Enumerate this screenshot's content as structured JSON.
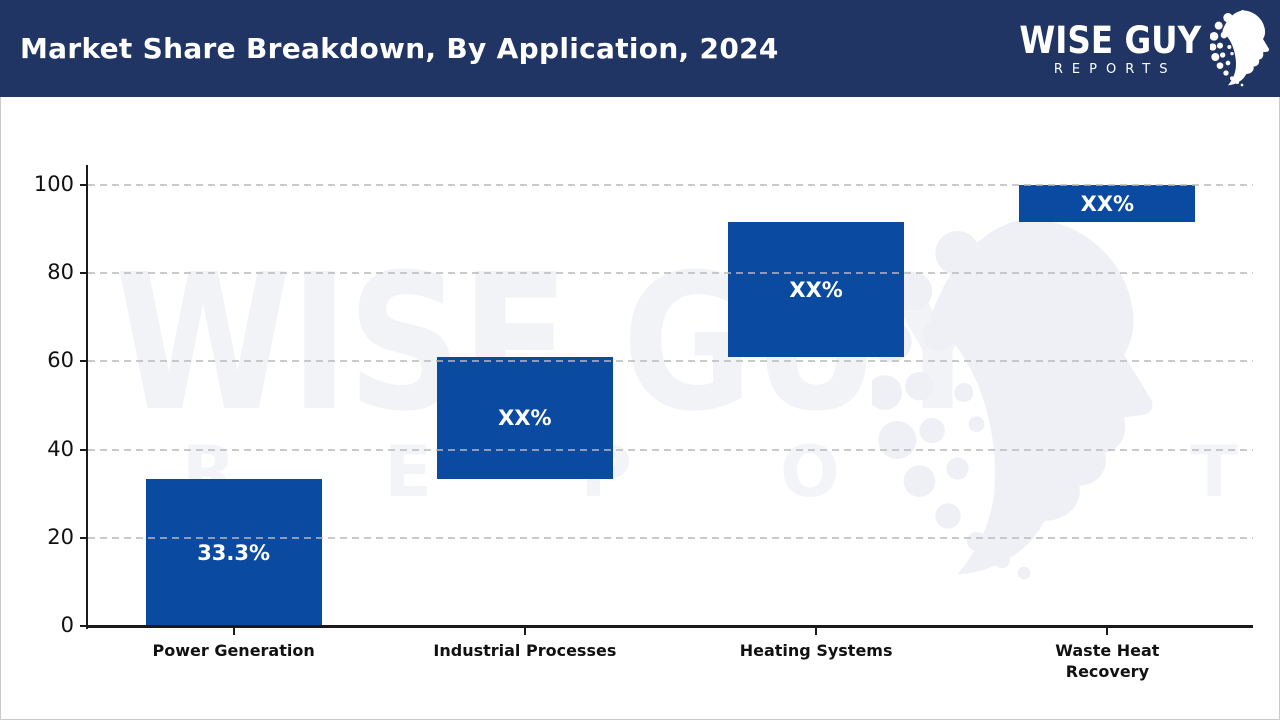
{
  "header": {
    "title": "Market Share Breakdown, By Application, 2024",
    "logo": {
      "primary": "WISE GUY",
      "secondary": "REPORTS"
    }
  },
  "watermark": {
    "line1": "WISE GUY",
    "line2": "R E P O R T S"
  },
  "colors": {
    "header_bg": "#203564",
    "bar": "#0b4aa1",
    "bar_label": "#ffffff",
    "axis": "#1a1a1a",
    "grid": "#c9c9c9",
    "tick_label": "#111111",
    "category_label": "#111111",
    "watermark": "#f0f2f6",
    "panel_border": "#c9c9c9"
  },
  "chart_data": {
    "type": "bar",
    "subtype": "floating-waterfall",
    "title": "Market Share Breakdown, By Application, 2024",
    "categories": [
      "Power Generation",
      "Industrial Processes",
      "Heating Systems",
      "Waste Heat Recovery"
    ],
    "bars": [
      {
        "category": "Power Generation",
        "start": 0,
        "end": 33.3,
        "label": "33.3%"
      },
      {
        "category": "Industrial Processes",
        "start": 33.3,
        "end": 61,
        "label": "XX%"
      },
      {
        "category": "Heating Systems",
        "start": 61,
        "end": 91.5,
        "label": "XX%"
      },
      {
        "category": "Waste Heat Recovery",
        "start": 91.5,
        "end": 100,
        "label": "XX%"
      }
    ],
    "xlabel": "",
    "ylabel": "",
    "yticks": [
      0,
      20,
      40,
      60,
      80,
      100
    ],
    "ylim": [
      0,
      104
    ],
    "grid": "horizontal-dashed",
    "legend": "none",
    "bar_color": "#0b4aa1"
  }
}
